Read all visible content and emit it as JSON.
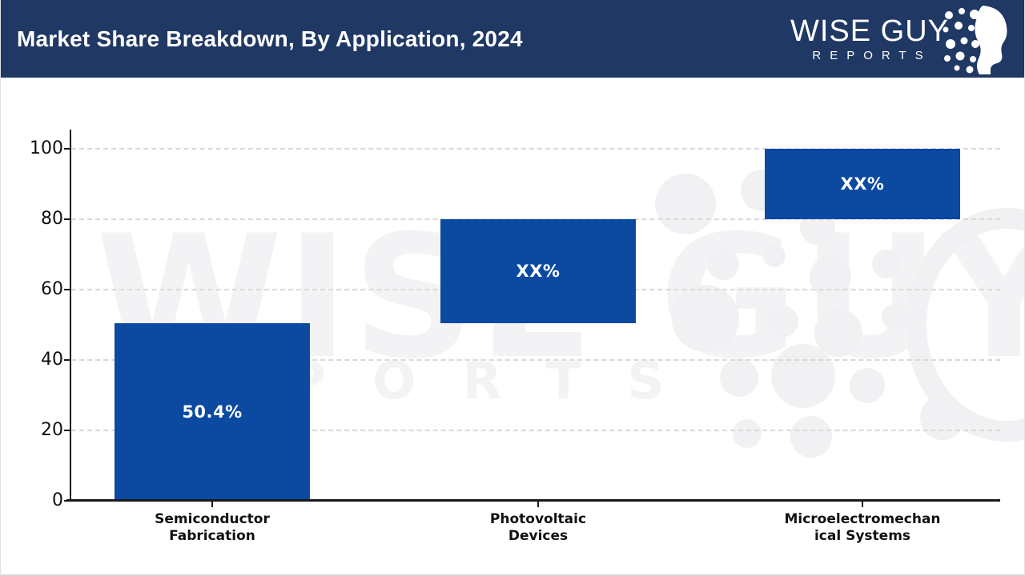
{
  "header": {
    "title": "Market Share Breakdown, By Application, 2024",
    "logo": {
      "brand_top": "WISE GUY",
      "brand_bottom": "REPORTS"
    }
  },
  "watermark": {
    "line1": "WISE GUY",
    "line2": "REPORTS"
  },
  "chart_data": {
    "type": "bar",
    "subtype": "floating-segment (stacked waterfall of market share)",
    "title": "Market Share Breakdown, By Application, 2024",
    "categories": [
      "Semiconductor Fabrication",
      "Photovoltaic Devices",
      "Microelectromechanical Systems"
    ],
    "bars": [
      {
        "label_lines": [
          "Semiconductor",
          "Fabrication"
        ],
        "start": 0,
        "end": 50.4,
        "value_label": "50.4%"
      },
      {
        "label_lines": [
          "Photovoltaic",
          "Devices"
        ],
        "start": 50.4,
        "end": 80,
        "value_label": "XX%"
      },
      {
        "label_lines": [
          "Microelectromechan",
          "ical Systems"
        ],
        "start": 80,
        "end": 100,
        "value_label": "XX%"
      }
    ],
    "xlabel": "",
    "ylabel": "",
    "yticks": [
      0,
      20,
      40,
      60,
      80,
      100
    ],
    "ylim": [
      0,
      105
    ],
    "grid": "horizontal-dashed",
    "legend": "none",
    "bar_color": "#0b4aa0",
    "value_label_color": "#ffffff"
  },
  "colors": {
    "header_bg": "#203864",
    "bar": "#0b4aa0",
    "watermark": "#f3f3f5",
    "grid": "#d9d9d9",
    "axis": "#1a1a1a"
  }
}
